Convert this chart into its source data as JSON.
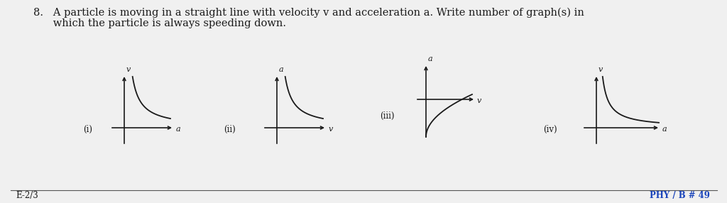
{
  "bg_color": "#f0f0f0",
  "text_color": "#1a1a1a",
  "title_line1": "8.   A particle is moving in a straight line with velocity v and acceleration a. Write number of graph(s) in",
  "title_line2": "      which the particle is always speeding down.",
  "graph_labels": [
    "(i)",
    "(ii)",
    "(iii)",
    "(iv)"
  ],
  "footer_left": "E-2/3",
  "footer_right": "PHY / B # 49",
  "lw": 1.2,
  "curve_lw": 1.3,
  "axis_color": "#1a1a1a",
  "title_fontsize": 10.5,
  "label_fontsize": 8.5
}
